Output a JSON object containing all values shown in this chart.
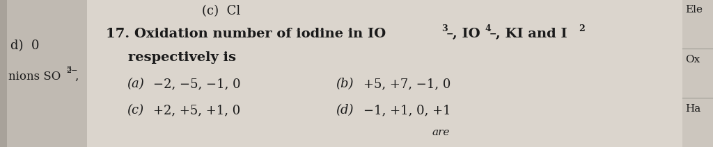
{
  "bg_color": "#d4cec6",
  "left_panel_color": "#c0bab2",
  "main_page_color": "#dbd5cd",
  "right_panel_color": "#ccc6be",
  "right_divider_color": "#a0a098",
  "text_color": "#1a1a1a",
  "top_text": "(c)  Cl",
  "left_d_text": "d)  0",
  "left_anions_text": "nions SO",
  "right_labels": [
    "Ele",
    "Ox",
    "Ha"
  ],
  "q_num": "17.",
  "q_main": "Oxidation number of iodine in IO",
  "q_sub3": "3",
  "q_sup_minus1": "−",
  "q_sep1": ", IO",
  "q_sub4": "4",
  "q_sup_minus2": "−",
  "q_sep2": ", KI and I",
  "q_sub2": "2",
  "q_line2": "respectively is",
  "opt_a_label": "(a)",
  "opt_a_val": "−2, −5, −1, 0",
  "opt_b_label": "(b)",
  "opt_b_val": "+5, +7, −1, 0",
  "opt_c_label": "(c)",
  "opt_c_val": "+2, +5, +1, 0",
  "opt_d_label": "(d)",
  "opt_d_val": "−1, +1, 0, +1",
  "bottom_text": "are"
}
